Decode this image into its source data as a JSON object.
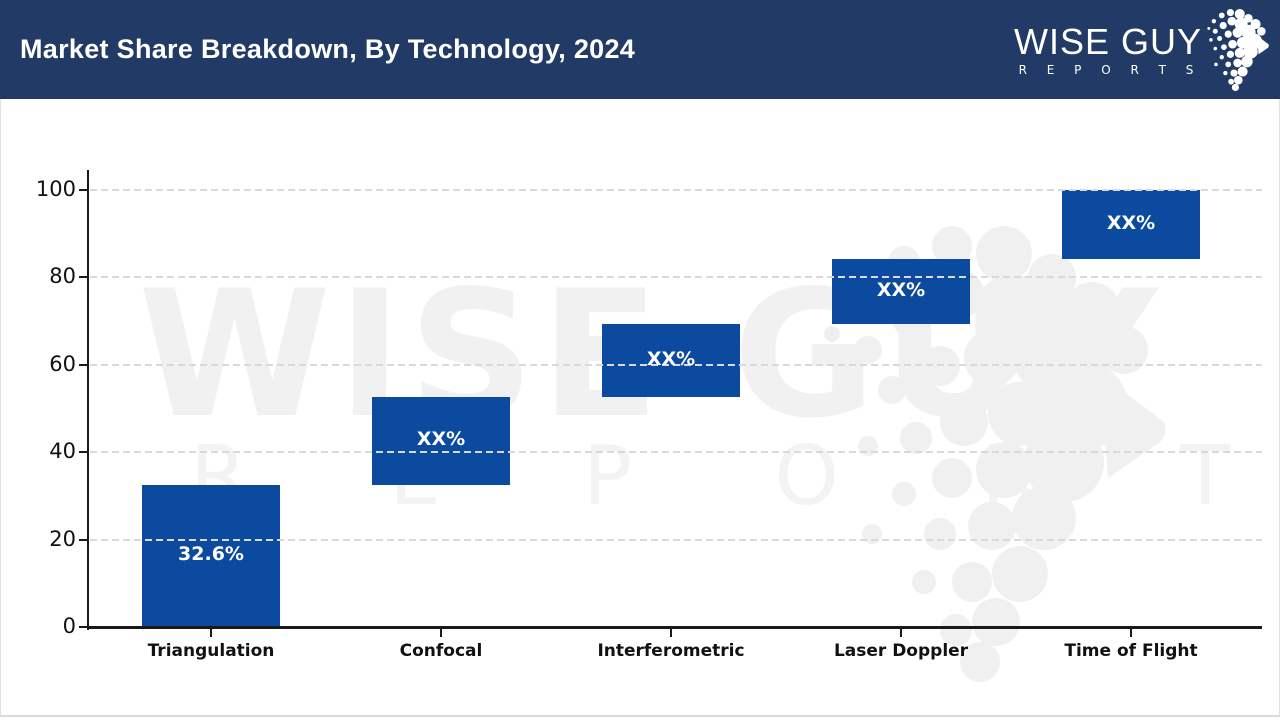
{
  "header": {
    "title": "Market Share Breakdown, By Technology, 2024",
    "bg_color": "#213a66",
    "logo_line1": "WISE GUY",
    "logo_line2": "R E P O R T S"
  },
  "watermark": {
    "line1": "WISE GUY",
    "line2": "R E P O R T S"
  },
  "chart_data": {
    "type": "bar",
    "subtype": "waterfall",
    "title": "Market Share Breakdown, By Technology, 2024",
    "xlabel": "",
    "ylabel": "",
    "ylim": [
      0,
      100
    ],
    "yticks": [
      0,
      20,
      40,
      60,
      80,
      100
    ],
    "grid": "horizontal-dashed",
    "legend": false,
    "categories": [
      "Triangulation",
      "Confocal",
      "Interferometric",
      "Laser Doppler",
      "Time of Flight"
    ],
    "segments": [
      {
        "category": "Triangulation",
        "start": 0,
        "end": 32.6,
        "label": "32.6%"
      },
      {
        "category": "Confocal",
        "start": 32.6,
        "end": 52.6,
        "label": "XX%"
      },
      {
        "category": "Interferometric",
        "start": 52.6,
        "end": 69.3,
        "label": "XX%"
      },
      {
        "category": "Laser Doppler",
        "start": 69.3,
        "end": 84.1,
        "label": "XX%"
      },
      {
        "category": "Time of Flight",
        "start": 84.1,
        "end": 100,
        "label": "XX%"
      }
    ],
    "colors": {
      "bar": "#0b4a9f",
      "bar_label": "#ffffff",
      "axis": "#1a1a1a",
      "grid": "#d9d9d9",
      "tick_label": "#111111"
    }
  }
}
